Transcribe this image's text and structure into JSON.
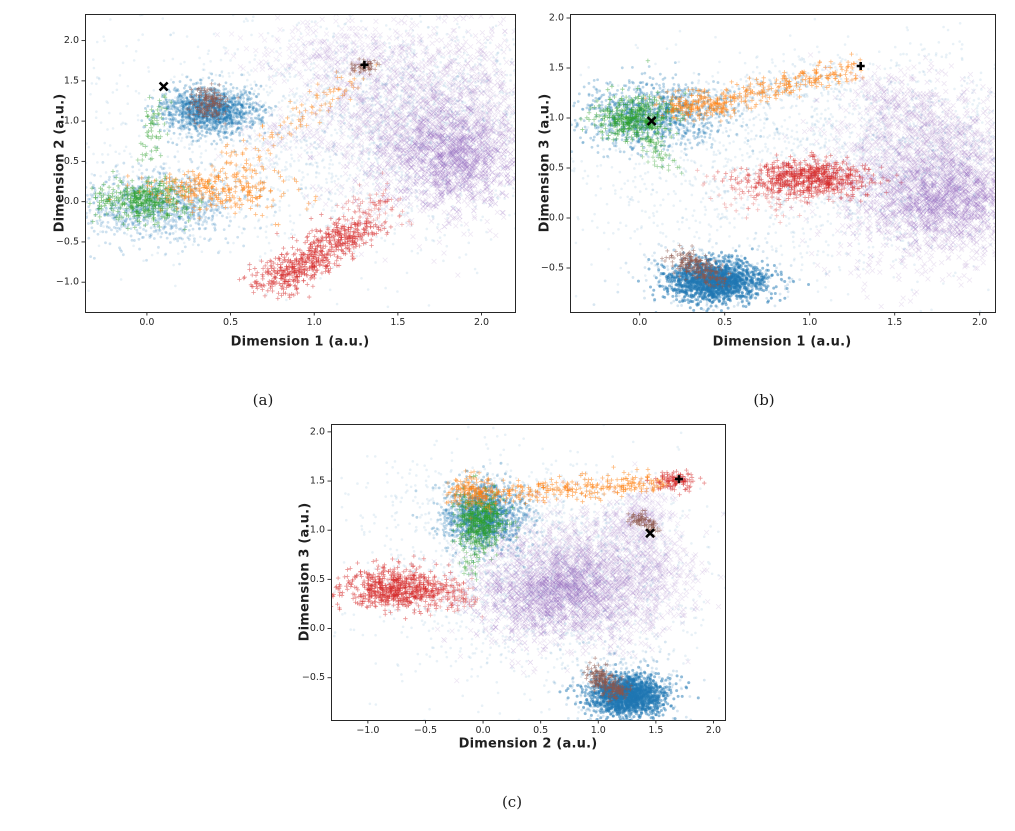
{
  "chart_data": [
    {
      "type": "scatter",
      "title": "",
      "caption": "(a)",
      "xlabel": "Dimension 1 (a.u.)",
      "ylabel": "Dimension 2 (a.u.)",
      "xlim": [
        -0.37,
        2.2
      ],
      "ylim": [
        -1.37,
        2.33
      ],
      "xticks": [
        0.0,
        0.5,
        1.0,
        1.5,
        2.0
      ],
      "yticks": [
        -1.0,
        -0.5,
        0.0,
        0.5,
        1.0,
        1.5,
        2.0
      ],
      "grid": false,
      "legend": "none",
      "point_groups": [
        {
          "name": "blue-diffuse-background",
          "color": "#1f77b4",
          "marker": "dot",
          "alpha": 0.1,
          "size": 1.3,
          "shape": "gauss",
          "n": 1600,
          "cx": 1.05,
          "cy": 0.75,
          "sx": 0.85,
          "sy": 0.75
        },
        {
          "name": "blue-diffuse-upper-right",
          "color": "#1f77b4",
          "marker": "dot",
          "alpha": 0.1,
          "size": 1.3,
          "shape": "gauss",
          "n": 700,
          "cx": 1.6,
          "cy": 1.25,
          "sx": 0.45,
          "sy": 0.55
        },
        {
          "name": "blue-dense-upper-left",
          "color": "#1f77b4",
          "marker": "dot",
          "alpha": 0.3,
          "size": 1.4,
          "shape": "gauss",
          "n": 1400,
          "cx": 0.38,
          "cy": 1.13,
          "sx": 0.14,
          "sy": 0.14
        },
        {
          "name": "blue-halo-lower-left",
          "color": "#1f77b4",
          "marker": "dot",
          "alpha": 0.22,
          "size": 1.4,
          "shape": "gauss",
          "n": 1000,
          "cx": 0.05,
          "cy": -0.05,
          "sx": 0.24,
          "sy": 0.22
        },
        {
          "name": "green-cluster",
          "color": "#2ca02c",
          "marker": "plus",
          "alpha": 0.5,
          "size": 2.2,
          "shape": "gauss",
          "n": 380,
          "cx": -0.02,
          "cy": 0.0,
          "sx": 0.13,
          "sy": 0.13
        },
        {
          "name": "green-trail",
          "color": "#2ca02c",
          "marker": "plus",
          "alpha": 0.45,
          "size": 2.2,
          "shape": "trail",
          "n": 60,
          "x1": 0.08,
          "y1": 1.32,
          "x2": 0.0,
          "y2": 0.5,
          "jitter": 0.04
        },
        {
          "name": "orange-cluster",
          "color": "#ff7f0e",
          "marker": "plus",
          "alpha": 0.55,
          "size": 2.2,
          "shape": "gauss",
          "n": 260,
          "cx": 0.42,
          "cy": 0.15,
          "sx": 0.22,
          "sy": 0.13
        },
        {
          "name": "orange-trail",
          "color": "#ff7f0e",
          "marker": "plus",
          "alpha": 0.5,
          "size": 2.2,
          "shape": "trail",
          "n": 130,
          "x1": 0.25,
          "y1": 0.05,
          "x2": 1.28,
          "y2": 1.62,
          "jitter": 0.07
        },
        {
          "name": "red-elongated-cluster",
          "color": "#d62728",
          "marker": "plus",
          "alpha": 0.5,
          "size": 2.2,
          "shape": "trail",
          "n": 650,
          "x1": 0.72,
          "y1": -1.05,
          "x2": 1.28,
          "y2": -0.3,
          "jitter": 0.09
        },
        {
          "name": "red-sparse",
          "color": "#d62728",
          "marker": "plus",
          "alpha": 0.35,
          "size": 2.2,
          "shape": "gauss",
          "n": 80,
          "cx": 1.35,
          "cy": -0.05,
          "sx": 0.1,
          "sy": 0.12
        },
        {
          "name": "purple-main",
          "color": "#9467bd",
          "marker": "x",
          "alpha": 0.16,
          "size": 2.4,
          "shape": "gauss",
          "n": 1900,
          "cx": 1.75,
          "cy": 1.0,
          "sx": 0.33,
          "sy": 0.55
        },
        {
          "name": "purple-dense",
          "color": "#9467bd",
          "marker": "x",
          "alpha": 0.28,
          "size": 2.4,
          "shape": "gauss",
          "n": 700,
          "cx": 1.82,
          "cy": 0.55,
          "sx": 0.2,
          "sy": 0.28
        },
        {
          "name": "purple-top",
          "color": "#9467bd",
          "marker": "x",
          "alpha": 0.14,
          "size": 2.4,
          "shape": "gauss",
          "n": 300,
          "cx": 1.15,
          "cy": 1.85,
          "sx": 0.25,
          "sy": 0.18
        },
        {
          "name": "purple-bridge",
          "color": "#9467bd",
          "marker": "x",
          "alpha": 0.14,
          "size": 2.4,
          "shape": "trail",
          "n": 150,
          "x1": 0.6,
          "y1": 0.6,
          "x2": 1.4,
          "y2": 1.4,
          "jitter": 0.15
        },
        {
          "name": "brown-overlay-upper-left",
          "color": "#8c564b",
          "marker": "plus",
          "alpha": 0.55,
          "size": 2.0,
          "shape": "gauss",
          "n": 160,
          "cx": 0.37,
          "cy": 1.22,
          "sx": 0.05,
          "sy": 0.1
        },
        {
          "name": "brown-near-plus-marker",
          "color": "#8c564b",
          "marker": "plus",
          "alpha": 0.55,
          "size": 2.0,
          "shape": "gauss",
          "n": 50,
          "cx": 1.3,
          "cy": 1.68,
          "sx": 0.05,
          "sy": 0.05
        }
      ],
      "landmarks": [
        {
          "marker": "x",
          "x": 0.1,
          "y": 1.43,
          "color": "#000000"
        },
        {
          "marker": "plus",
          "x": 1.3,
          "y": 1.7,
          "color": "#000000"
        }
      ]
    },
    {
      "type": "scatter",
      "title": "",
      "caption": "(b)",
      "xlabel": "Dimension 1 (a.u.)",
      "ylabel": "Dimension 3 (a.u.)",
      "xlim": [
        -0.41,
        2.09
      ],
      "ylim": [
        -0.94,
        2.04
      ],
      "xticks": [
        0.0,
        0.5,
        1.0,
        1.5,
        2.0
      ],
      "yticks": [
        -0.5,
        0.0,
        0.5,
        1.0,
        1.5,
        2.0
      ],
      "grid": false,
      "legend": "none",
      "point_groups": [
        {
          "name": "blue-diffuse-background",
          "color": "#1f77b4",
          "marker": "dot",
          "alpha": 0.1,
          "size": 1.3,
          "shape": "gauss",
          "n": 1500,
          "cx": 1.0,
          "cy": 0.5,
          "sx": 0.8,
          "sy": 0.55
        },
        {
          "name": "blue-diffuse-right",
          "color": "#1f77b4",
          "marker": "dot",
          "alpha": 0.1,
          "size": 1.3,
          "shape": "gauss",
          "n": 500,
          "cx": 1.7,
          "cy": 0.75,
          "sx": 0.4,
          "sy": 0.45
        },
        {
          "name": "blue-dense-upper-left",
          "color": "#1f77b4",
          "marker": "dot",
          "alpha": 0.3,
          "size": 1.4,
          "shape": "gauss",
          "n": 1100,
          "cx": 0.08,
          "cy": 1.03,
          "sx": 0.22,
          "sy": 0.17
        },
        {
          "name": "blue-ridge-trail",
          "color": "#1f77b4",
          "marker": "dot",
          "alpha": 0.13,
          "size": 1.3,
          "shape": "trail",
          "n": 300,
          "x1": 0.3,
          "y1": 1.1,
          "x2": 1.2,
          "y2": 1.45,
          "jitter": 0.09
        },
        {
          "name": "green-cluster",
          "color": "#2ca02c",
          "marker": "plus",
          "alpha": 0.5,
          "size": 2.2,
          "shape": "gauss",
          "n": 420,
          "cx": -0.02,
          "cy": 1.0,
          "sx": 0.12,
          "sy": 0.11
        },
        {
          "name": "green-trail",
          "color": "#2ca02c",
          "marker": "plus",
          "alpha": 0.4,
          "size": 2.2,
          "shape": "trail",
          "n": 50,
          "x1": 0.02,
          "y1": 0.85,
          "x2": 0.2,
          "y2": 0.45,
          "jitter": 0.05
        },
        {
          "name": "orange-trail",
          "color": "#ff7f0e",
          "marker": "plus",
          "alpha": 0.55,
          "size": 2.2,
          "shape": "trail",
          "n": 280,
          "x1": 0.2,
          "y1": 1.08,
          "x2": 1.26,
          "y2": 1.5,
          "jitter": 0.06
        },
        {
          "name": "orange-cluster",
          "color": "#ff7f0e",
          "marker": "plus",
          "alpha": 0.5,
          "size": 2.2,
          "shape": "gauss",
          "n": 120,
          "cx": 0.35,
          "cy": 1.12,
          "sx": 0.12,
          "sy": 0.07
        },
        {
          "name": "red-elongated-cluster",
          "color": "#d62728",
          "marker": "plus",
          "alpha": 0.5,
          "size": 2.2,
          "shape": "gauss",
          "n": 650,
          "cx": 1.0,
          "cy": 0.4,
          "sx": 0.18,
          "sy": 0.09
        },
        {
          "name": "red-sparse",
          "color": "#d62728",
          "marker": "plus",
          "alpha": 0.3,
          "size": 2.2,
          "shape": "gauss",
          "n": 120,
          "cx": 0.75,
          "cy": 0.28,
          "sx": 0.2,
          "sy": 0.13
        },
        {
          "name": "purple-main",
          "color": "#9467bd",
          "marker": "x",
          "alpha": 0.16,
          "size": 2.4,
          "shape": "gauss",
          "n": 1900,
          "cx": 1.75,
          "cy": 0.35,
          "sx": 0.3,
          "sy": 0.42
        },
        {
          "name": "purple-dense",
          "color": "#9467bd",
          "marker": "x",
          "alpha": 0.28,
          "size": 2.4,
          "shape": "gauss",
          "n": 600,
          "cx": 1.8,
          "cy": 0.18,
          "sx": 0.22,
          "sy": 0.2
        },
        {
          "name": "purple-arc-trail",
          "color": "#9467bd",
          "marker": "x",
          "alpha": 0.16,
          "size": 2.4,
          "shape": "trail",
          "n": 250,
          "x1": 1.4,
          "y1": 1.35,
          "x2": 1.85,
          "y2": 0.7,
          "jitter": 0.12
        },
        {
          "name": "purple-mid",
          "color": "#9467bd",
          "marker": "x",
          "alpha": 0.13,
          "size": 2.4,
          "shape": "gauss",
          "n": 200,
          "cx": 1.45,
          "cy": 0.85,
          "sx": 0.15,
          "sy": 0.25
        },
        {
          "name": "blue-solid-blob-bottom",
          "color": "#1f77b4",
          "marker": "dot",
          "alpha": 0.5,
          "size": 1.5,
          "shape": "gauss",
          "n": 1600,
          "cx": 0.45,
          "cy": -0.63,
          "sx": 0.14,
          "sy": 0.1
        },
        {
          "name": "blue-blob-halo",
          "color": "#1f77b4",
          "marker": "dot",
          "alpha": 0.18,
          "size": 1.4,
          "shape": "gauss",
          "n": 300,
          "cx": 0.45,
          "cy": -0.58,
          "sx": 0.22,
          "sy": 0.18
        },
        {
          "name": "brown-streak",
          "color": "#8c564b",
          "marker": "plus",
          "alpha": 0.55,
          "size": 2.0,
          "shape": "trail",
          "n": 220,
          "x1": 0.24,
          "y1": -0.38,
          "x2": 0.46,
          "y2": -0.62,
          "jitter": 0.05
        }
      ],
      "landmarks": [
        {
          "marker": "plus",
          "x": 1.3,
          "y": 1.52,
          "color": "#000000"
        },
        {
          "marker": "x",
          "x": 0.07,
          "y": 0.97,
          "color": "#000000"
        }
      ]
    },
    {
      "type": "scatter",
      "title": "",
      "caption": "(c)",
      "xlabel": "Dimension 2 (a.u.)",
      "ylabel": "Dimension 3 (a.u.)",
      "xlim": [
        -1.32,
        2.1
      ],
      "ylim": [
        -0.93,
        2.08
      ],
      "xticks": [
        -1.0,
        -0.5,
        0.0,
        0.5,
        1.0,
        1.5,
        2.0
      ],
      "yticks": [
        -0.5,
        0.0,
        0.5,
        1.0,
        1.5,
        2.0
      ],
      "grid": false,
      "legend": "none",
      "point_groups": [
        {
          "name": "blue-diffuse-background",
          "color": "#1f77b4",
          "marker": "dot",
          "alpha": 0.1,
          "size": 1.3,
          "shape": "gauss",
          "n": 1400,
          "cx": 0.5,
          "cy": 0.5,
          "sx": 0.75,
          "sy": 0.55
        },
        {
          "name": "blue-diffuse-upper",
          "color": "#1f77b4",
          "marker": "dot",
          "alpha": 0.1,
          "size": 1.3,
          "shape": "gauss",
          "n": 400,
          "cx": 0.1,
          "cy": 1.2,
          "sx": 0.5,
          "sy": 0.3
        },
        {
          "name": "blue-dense-upper-middle",
          "color": "#1f77b4",
          "marker": "dot",
          "alpha": 0.3,
          "size": 1.4,
          "shape": "gauss",
          "n": 1300,
          "cx": 0.0,
          "cy": 1.15,
          "sx": 0.17,
          "sy": 0.17
        },
        {
          "name": "green-cluster",
          "color": "#2ca02c",
          "marker": "plus",
          "alpha": 0.5,
          "size": 2.2,
          "shape": "gauss",
          "n": 430,
          "cx": -0.03,
          "cy": 1.1,
          "sx": 0.11,
          "sy": 0.13
        },
        {
          "name": "green-trail",
          "color": "#2ca02c",
          "marker": "plus",
          "alpha": 0.4,
          "size": 2.2,
          "shape": "trail",
          "n": 50,
          "x1": -0.05,
          "y1": 0.95,
          "x2": -0.12,
          "y2": 0.55,
          "jitter": 0.05
        },
        {
          "name": "orange-trail",
          "color": "#ff7f0e",
          "marker": "plus",
          "alpha": 0.55,
          "size": 2.2,
          "shape": "trail",
          "n": 300,
          "x1": -0.1,
          "y1": 1.35,
          "x2": 1.55,
          "y2": 1.5,
          "jitter": 0.06
        },
        {
          "name": "orange-cluster",
          "color": "#ff7f0e",
          "marker": "plus",
          "alpha": 0.5,
          "size": 2.2,
          "shape": "gauss",
          "n": 130,
          "cx": -0.12,
          "cy": 1.38,
          "sx": 0.1,
          "sy": 0.08
        },
        {
          "name": "red-elongated-cluster",
          "color": "#d62728",
          "marker": "plus",
          "alpha": 0.5,
          "size": 2.2,
          "shape": "gauss",
          "n": 650,
          "cx": -0.75,
          "cy": 0.4,
          "sx": 0.22,
          "sy": 0.1
        },
        {
          "name": "red-trail",
          "color": "#d62728",
          "marker": "plus",
          "alpha": 0.35,
          "size": 2.2,
          "shape": "trail",
          "n": 120,
          "x1": -0.5,
          "y1": 0.38,
          "x2": -0.1,
          "y2": 0.3,
          "jitter": 0.08
        },
        {
          "name": "red-near-plus-marker",
          "color": "#d62728",
          "marker": "plus",
          "alpha": 0.5,
          "size": 2.2,
          "shape": "gauss",
          "n": 110,
          "cx": 1.66,
          "cy": 1.5,
          "sx": 0.09,
          "sy": 0.05
        },
        {
          "name": "purple-main",
          "color": "#9467bd",
          "marker": "x",
          "alpha": 0.16,
          "size": 2.4,
          "shape": "gauss",
          "n": 1900,
          "cx": 0.85,
          "cy": 0.5,
          "sx": 0.45,
          "sy": 0.33
        },
        {
          "name": "purple-dense",
          "color": "#9467bd",
          "marker": "x",
          "alpha": 0.26,
          "size": 2.4,
          "shape": "gauss",
          "n": 700,
          "cx": 0.6,
          "cy": 0.35,
          "sx": 0.3,
          "sy": 0.2
        },
        {
          "name": "purple-right-edge",
          "color": "#9467bd",
          "marker": "x",
          "alpha": 0.14,
          "size": 2.4,
          "shape": "gauss",
          "n": 250,
          "cx": 1.5,
          "cy": 0.7,
          "sx": 0.12,
          "sy": 0.33
        },
        {
          "name": "purple-up-trail",
          "color": "#9467bd",
          "marker": "x",
          "alpha": 0.14,
          "size": 2.4,
          "shape": "trail",
          "n": 180,
          "x1": 1.1,
          "y1": 1.0,
          "x2": 1.5,
          "y2": 1.3,
          "jitter": 0.1
        },
        {
          "name": "blue-solid-blob-bottom",
          "color": "#1f77b4",
          "marker": "dot",
          "alpha": 0.5,
          "size": 1.5,
          "shape": "gauss",
          "n": 1600,
          "cx": 1.25,
          "cy": -0.68,
          "sx": 0.16,
          "sy": 0.1
        },
        {
          "name": "blue-blob-halo",
          "color": "#1f77b4",
          "marker": "dot",
          "alpha": 0.18,
          "size": 1.4,
          "shape": "gauss",
          "n": 300,
          "cx": 1.2,
          "cy": -0.6,
          "sx": 0.25,
          "sy": 0.18
        },
        {
          "name": "brown-streak",
          "color": "#8c564b",
          "marker": "plus",
          "alpha": 0.55,
          "size": 2.0,
          "shape": "trail",
          "n": 220,
          "x1": 0.95,
          "y1": -0.45,
          "x2": 1.2,
          "y2": -0.66,
          "jitter": 0.05
        },
        {
          "name": "brown-near-x-marker",
          "color": "#8c564b",
          "marker": "plus",
          "alpha": 0.55,
          "size": 2.0,
          "shape": "trail",
          "n": 90,
          "x1": 1.3,
          "y1": 1.15,
          "x2": 1.5,
          "y2": 1.02,
          "jitter": 0.04
        }
      ],
      "landmarks": [
        {
          "marker": "plus",
          "x": 1.7,
          "y": 1.52,
          "color": "#000000"
        },
        {
          "marker": "x",
          "x": 1.45,
          "y": 0.97,
          "color": "#000000"
        }
      ]
    }
  ],
  "style": {
    "spine_color": "#262626",
    "tick_label_color": "#262626",
    "background": "#ffffff"
  }
}
